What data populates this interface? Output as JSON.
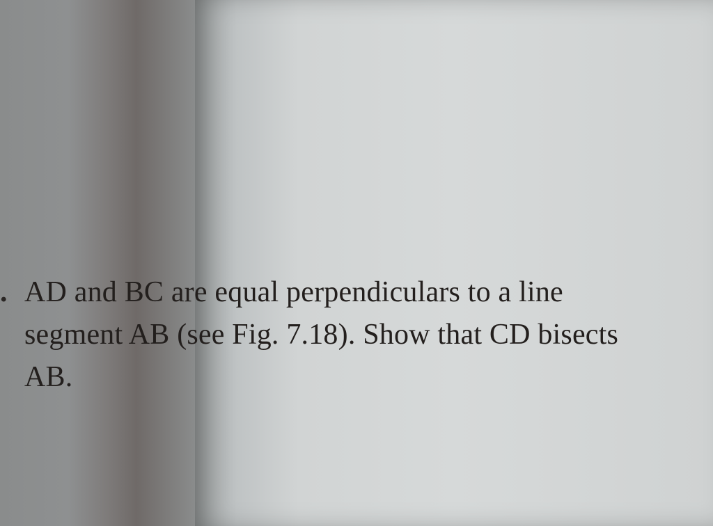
{
  "doc": {
    "type": "document",
    "background_color_left": "#8a8c8c",
    "background_color_right": "#d1d4d4",
    "text_color": "#231f1d",
    "font_family": "Georgia, Times New Roman, serif",
    "body_fontsize_pt": 32,
    "list_marker": ".",
    "problem_text_line1": "AD and BC are equal perpendiculars to a line",
    "problem_text_line2": "segment AB (see Fig. 7.18). Show that CD bisects",
    "problem_text_line3": "AB."
  }
}
